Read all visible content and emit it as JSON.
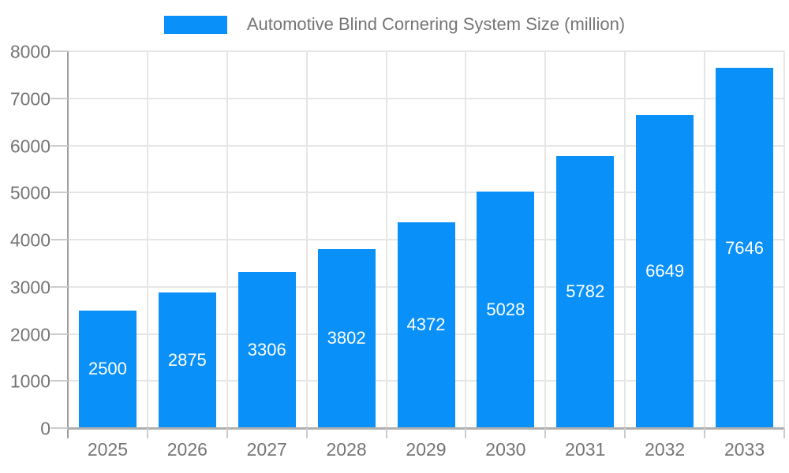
{
  "legend": {
    "label": "Automotive Blind Cornering System Size (million)",
    "swatch_color": "#0a90f9"
  },
  "chart_data": {
    "type": "bar",
    "title": "Automotive Blind Cornering System Size (million)",
    "categories": [
      "2025",
      "2026",
      "2027",
      "2028",
      "2029",
      "2030",
      "2031",
      "2032",
      "2033"
    ],
    "values": [
      2500,
      2875,
      3306,
      3802,
      4372,
      5028,
      5782,
      6649,
      7646
    ],
    "xlabel": "",
    "ylabel": "",
    "ylim": [
      0,
      8000
    ],
    "yticks": [
      0,
      1000,
      2000,
      3000,
      4000,
      5000,
      6000,
      7000,
      8000
    ],
    "grid": true,
    "legend_position": "top",
    "value_label_position": "inside-center",
    "colors": {
      "bar": "#0a90f9",
      "grid": "#e6e6e6",
      "y_axis_line": "#9e9e9e",
      "x_axis_line": "#b0b0b0",
      "tick": "#cccccc",
      "axis_text": "#757575",
      "value_label_text": "#ffffff"
    }
  }
}
